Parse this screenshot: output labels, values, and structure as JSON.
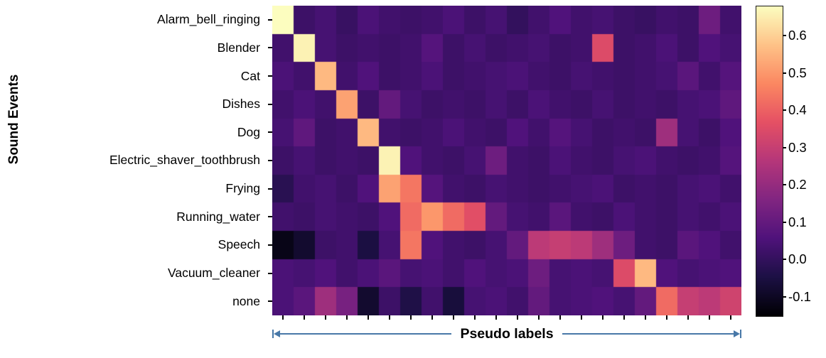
{
  "ylabel": "Sound Events",
  "xlabel": "Pseudo labels",
  "colors": {
    "arrow": "#4878a8",
    "text": "#000000",
    "background": "#ffffff"
  },
  "chart_data": {
    "type": "heatmap",
    "title": "",
    "xlabel": "Pseudo labels",
    "ylabel": "Sound Events",
    "colormap": "magma",
    "vmin": -0.15,
    "vmax": 0.68,
    "legend_position": "right-colorbar",
    "grid": false,
    "rows": [
      "Alarm_bell_ringing",
      "Blender",
      "Cat",
      "Dishes",
      "Dog",
      "Electric_shaver_toothbrush",
      "Frying",
      "Running_water",
      "Speech",
      "Vacuum_cleaner",
      "none"
    ],
    "n_cols": 22,
    "x_tick_labels": [],
    "colorbar_ticks": [
      0.6,
      0.5,
      0.4,
      0.3,
      0.2,
      0.1,
      0.0,
      -0.1
    ],
    "values": [
      [
        0.68,
        0.02,
        0.04,
        0.01,
        0.05,
        0.03,
        0.02,
        0.03,
        0.05,
        0.02,
        0.04,
        0.0,
        0.03,
        0.06,
        0.03,
        0.04,
        0.02,
        0.01,
        0.03,
        0.02,
        0.12,
        0.03
      ],
      [
        0.03,
        0.66,
        0.04,
        0.02,
        0.03,
        0.02,
        0.03,
        0.07,
        0.02,
        0.04,
        0.02,
        0.03,
        0.04,
        0.02,
        0.03,
        0.35,
        0.02,
        0.03,
        0.05,
        0.02,
        0.06,
        0.04
      ],
      [
        0.05,
        0.03,
        0.56,
        0.03,
        0.06,
        0.02,
        0.03,
        0.05,
        0.02,
        0.03,
        0.04,
        0.05,
        0.03,
        0.02,
        0.04,
        0.03,
        0.02,
        0.03,
        0.04,
        0.08,
        0.03,
        0.07
      ],
      [
        0.03,
        0.05,
        0.03,
        0.52,
        0.02,
        0.1,
        0.04,
        0.02,
        0.03,
        0.02,
        0.04,
        0.02,
        0.05,
        0.03,
        0.02,
        0.04,
        0.02,
        0.03,
        0.02,
        0.04,
        0.05,
        0.09
      ],
      [
        0.04,
        0.09,
        0.02,
        0.03,
        0.56,
        0.03,
        0.02,
        0.03,
        0.05,
        0.03,
        0.02,
        0.06,
        0.03,
        0.07,
        0.04,
        0.02,
        0.03,
        0.02,
        0.22,
        0.04,
        0.02,
        0.06
      ],
      [
        0.02,
        0.04,
        0.02,
        0.03,
        0.02,
        0.66,
        0.06,
        0.03,
        0.02,
        0.04,
        0.12,
        0.03,
        0.02,
        0.05,
        0.03,
        0.02,
        0.04,
        0.05,
        0.03,
        0.02,
        0.03,
        0.07
      ],
      [
        -0.02,
        0.03,
        0.04,
        0.02,
        0.06,
        0.52,
        0.44,
        0.07,
        0.03,
        0.02,
        0.04,
        0.03,
        0.02,
        0.03,
        0.04,
        0.05,
        0.02,
        0.03,
        0.02,
        0.04,
        0.05,
        0.03
      ],
      [
        0.03,
        0.02,
        0.04,
        0.03,
        0.02,
        0.06,
        0.42,
        0.5,
        0.42,
        0.36,
        0.1,
        0.04,
        0.03,
        0.08,
        0.03,
        0.02,
        0.05,
        0.03,
        0.02,
        0.04,
        0.03,
        0.05
      ],
      [
        -0.12,
        -0.08,
        0.02,
        0.03,
        -0.05,
        0.04,
        0.44,
        0.06,
        0.03,
        0.02,
        0.04,
        0.1,
        0.28,
        0.3,
        0.28,
        0.22,
        0.12,
        0.03,
        0.02,
        0.08,
        0.06,
        0.03
      ],
      [
        0.05,
        0.04,
        0.06,
        0.03,
        0.05,
        0.08,
        0.04,
        0.05,
        0.03,
        0.06,
        0.04,
        0.05,
        0.12,
        0.04,
        0.05,
        0.04,
        0.35,
        0.56,
        0.06,
        0.04,
        0.05,
        0.06
      ],
      [
        0.05,
        0.08,
        0.22,
        0.14,
        -0.08,
        0.02,
        -0.04,
        0.03,
        -0.06,
        0.04,
        0.05,
        0.03,
        0.1,
        0.04,
        0.05,
        0.06,
        0.04,
        0.1,
        0.42,
        0.3,
        0.28,
        0.32
      ]
    ]
  }
}
